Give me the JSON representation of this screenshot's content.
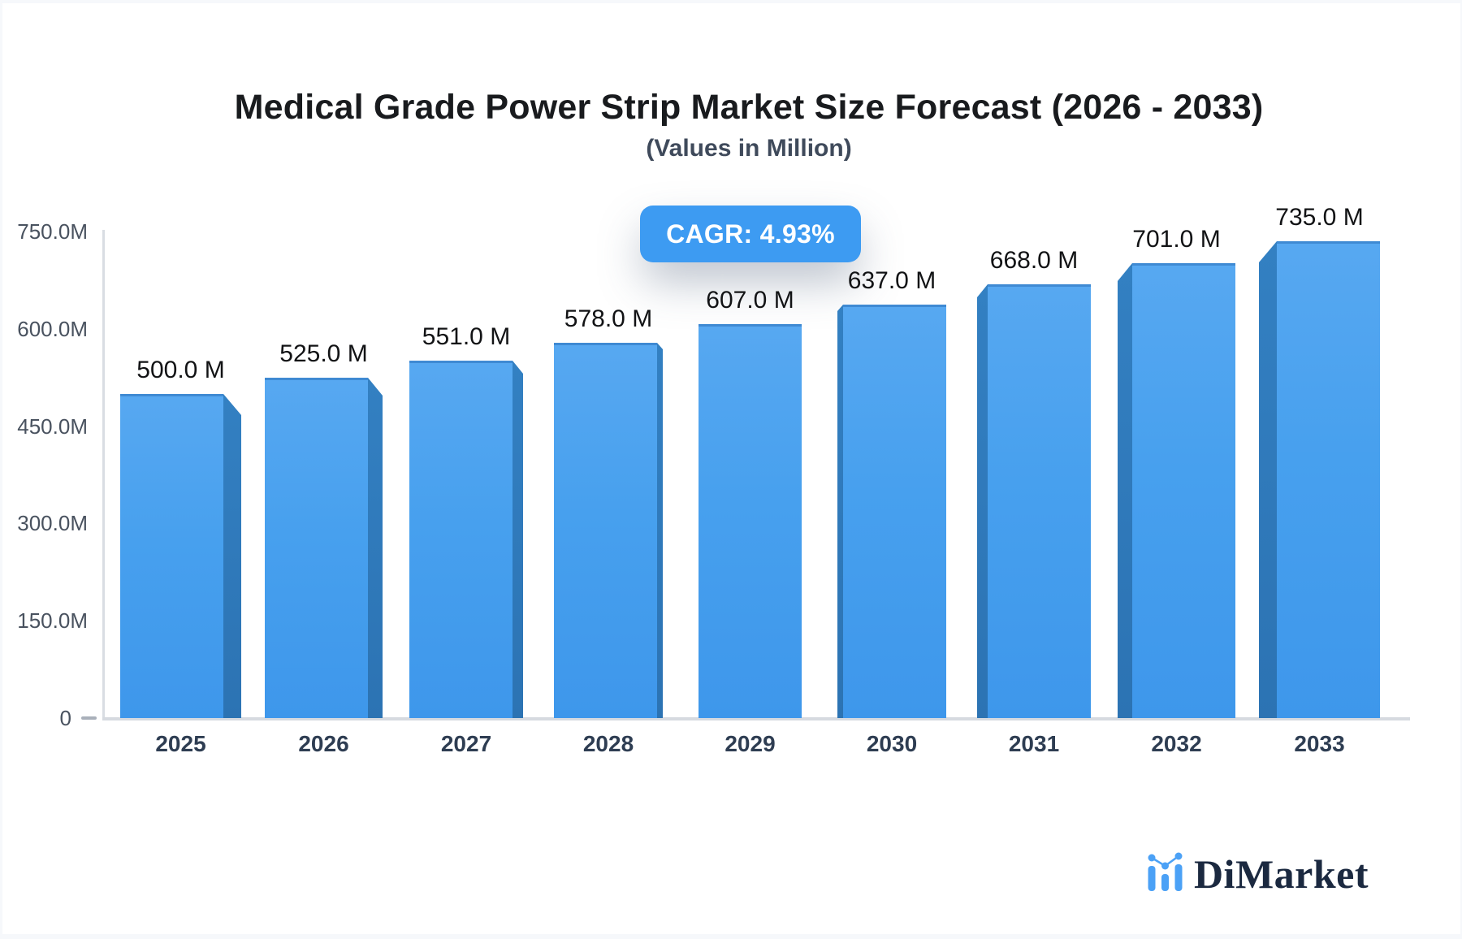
{
  "header": {
    "title": "Medical Grade Power Strip Market Size Forecast (2026 - 2033)",
    "subtitle": "(Values in Million)",
    "cagr_badge": "CAGR: 4.93%"
  },
  "chart_data": {
    "type": "bar",
    "title": "Medical Grade Power Strip Market Size Forecast (2026 - 2033)",
    "subtitle": "(Values in Million)",
    "unit": "Million",
    "cagr_percent": 4.93,
    "categories": [
      "2025",
      "2026",
      "2027",
      "2028",
      "2029",
      "2030",
      "2031",
      "2032",
      "2033"
    ],
    "values": [
      500.0,
      525.0,
      551.0,
      578.0,
      607.0,
      637.0,
      668.0,
      701.0,
      735.0
    ],
    "value_labels": [
      "500.0 M",
      "525.0 M",
      "551.0 M",
      "578.0 M",
      "607.0 M",
      "637.0 M",
      "668.0 M",
      "701.0 M",
      "735.0 M"
    ],
    "y_axis": {
      "ticks": [
        {
          "label": "750.0M",
          "value": 750
        },
        {
          "label": "600.0M",
          "value": 600
        },
        {
          "label": "450.0M",
          "value": 450
        },
        {
          "label": "300.0M",
          "value": 300
        },
        {
          "label": "150.0M",
          "value": 150
        },
        {
          "label": "0",
          "value": 0
        }
      ],
      "ylim": [
        0,
        750
      ]
    },
    "legend": "none",
    "grid": "off",
    "style": "3d-perspective-bars"
  },
  "logo": {
    "text": "DiMarket",
    "icon": "bar-chart-sparkline-icon"
  },
  "theme": {
    "page_background": "#f6f8fb",
    "card_background": "#ffffff",
    "bar_face_top": "#57a8f1",
    "bar_face_bottom": "#3e97eb",
    "bar_side": "#2e77b8",
    "bar_top_edge": "#3f8ad3",
    "badge_background": "#3d9bf2",
    "badge_text": "#ffffff",
    "axis_line": "#d9dde3",
    "y_label_color": "#49525f",
    "x_label_color": "#2e3d52",
    "value_label_color": "#121315",
    "title_color": "#191b1e",
    "subtitle_color": "#3f4a5b",
    "logo_blue": "#4ba1f6",
    "logo_navy": "#1b2940"
  }
}
